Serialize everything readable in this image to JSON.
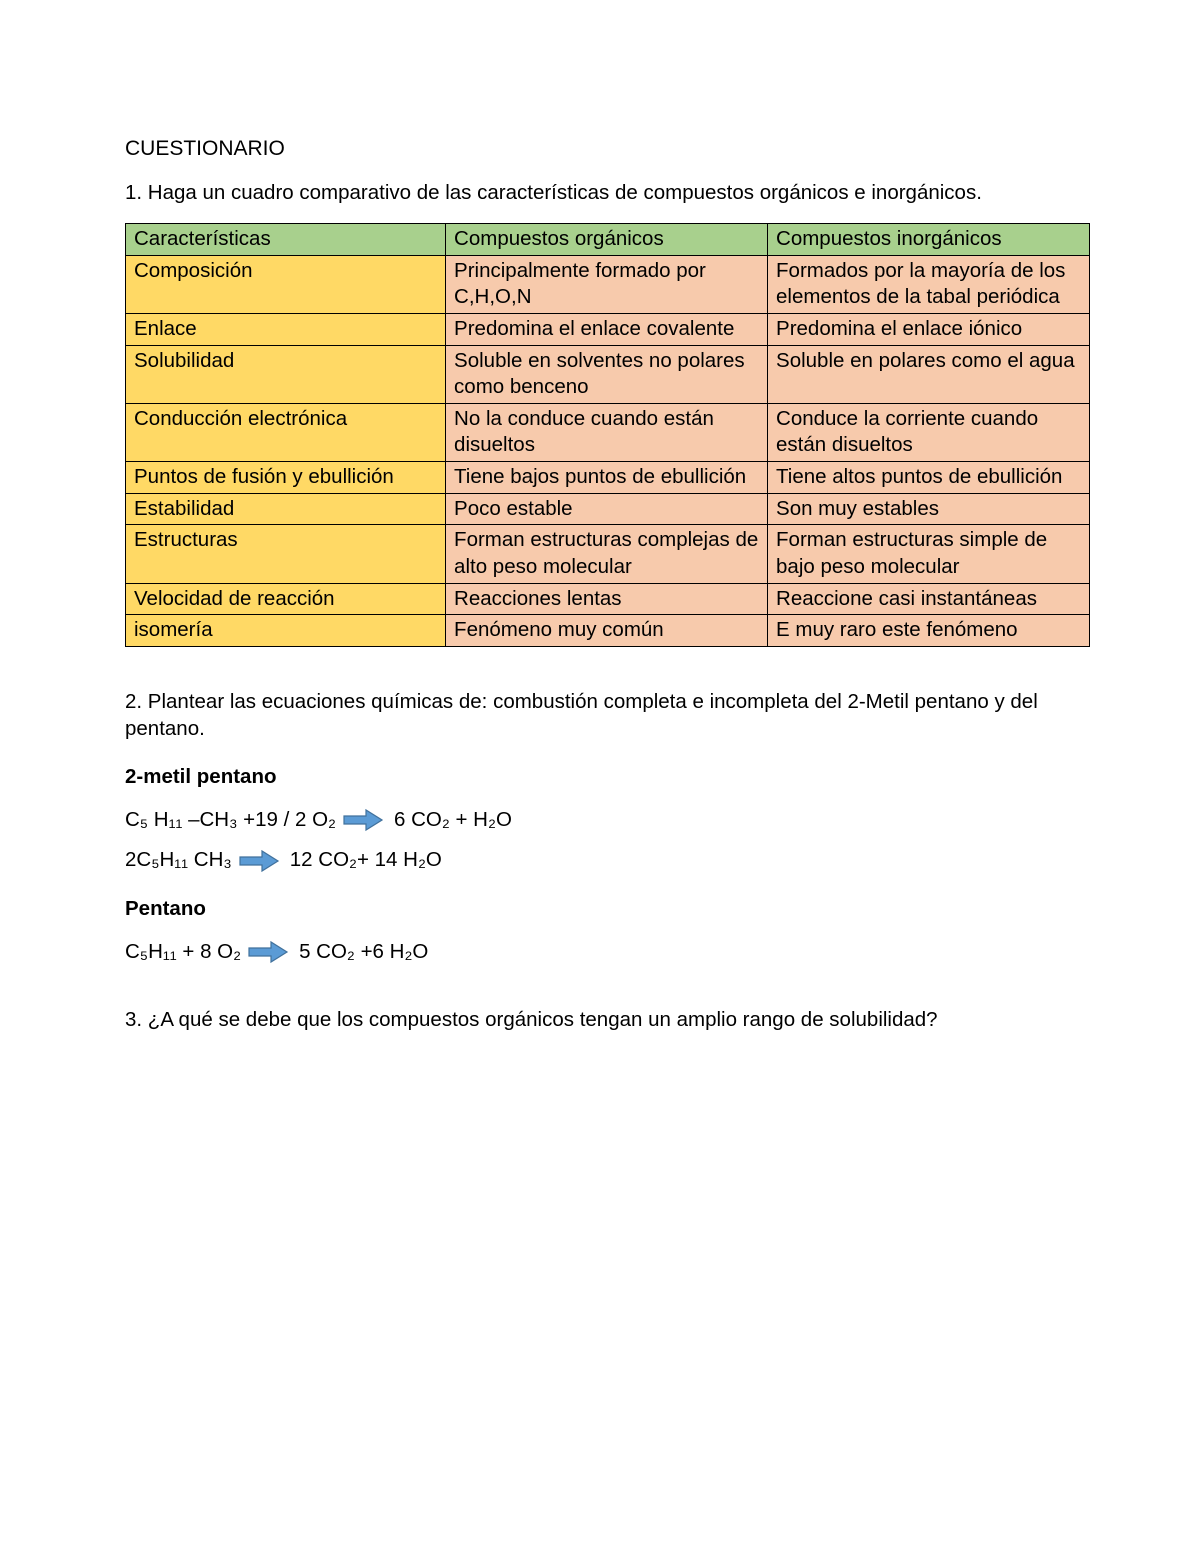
{
  "title": "CUESTIONARIO",
  "q1": "1. Haga un cuadro comparativo de las características de compuestos orgánicos e inorgánicos.",
  "table": {
    "header_bg": "#a8d08d",
    "col0_bg": "#ffd965",
    "col12_bg": "#f7caac",
    "border_color": "#000000",
    "columns": [
      "Características",
      "Compuestos orgánicos",
      "Compuestos inorgánicos"
    ],
    "rows": [
      [
        "Composición",
        "Principalmente formado por C,H,O,N",
        "Formados por la mayoría de los elementos de la tabal periódica"
      ],
      [
        "Enlace",
        "Predomina el enlace covalente",
        "Predomina el enlace iónico"
      ],
      [
        "Solubilidad",
        "Soluble en solventes no polares como benceno",
        "Soluble en polares como el agua"
      ],
      [
        "Conducción electrónica",
        "No la conduce cuando están disueltos",
        "Conduce la corriente cuando están disueltos"
      ],
      [
        "Puntos de fusión y ebullición",
        "Tiene bajos puntos de ebullición",
        "Tiene altos puntos de ebullición"
      ],
      [
        "Estabilidad",
        "Poco estable",
        "Son muy estables"
      ],
      [
        "Estructuras",
        "Forman estructuras complejas de alto peso molecular",
        "Forman estructuras simple de bajo peso molecular"
      ],
      [
        "Velocidad de reacción",
        "Reacciones lentas",
        "Reaccione casi instantáneas"
      ],
      [
        "isomería",
        "Fenómeno muy común",
        "E muy raro este fenómeno"
      ]
    ]
  },
  "q2": "2. Plantear las ecuaciones químicas de: combustión completa e incompleta del 2-Metil pentano y del pentano.",
  "compound1": "2-metil pentano",
  "eq1": {
    "lhs": "C₅ H₁₁ –CH₃ +19 / 2 O₂",
    "rhs": "6 CO₂ + H₂O"
  },
  "eq2": {
    "lhs": "2C₅H₁₁   CH₃",
    "rhs": "12 CO₂+ 14 H₂O"
  },
  "compound2": "Pentano",
  "eq3": {
    "lhs": "C₅H₁₁ + 8 O₂",
    "rhs": "5 CO₂ +6 H₂O"
  },
  "q3": "3. ¿A qué se debe que los compuestos orgánicos tengan un amplio rango de solubilidad?",
  "arrow_fill": "#5b9bd5",
  "arrow_stroke": "#41719c"
}
